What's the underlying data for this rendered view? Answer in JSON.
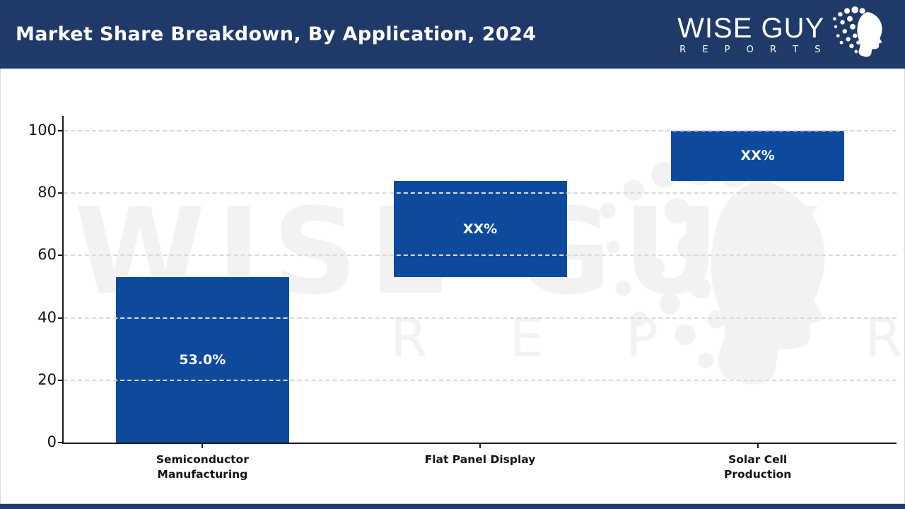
{
  "header": {
    "title": "Market Share Breakdown, By Application, 2024",
    "logo": {
      "line1": "WISE GUY",
      "line2": "R E P O R T S"
    }
  },
  "watermark": {
    "line1": "WISE GUY",
    "line2": "R E P O R T S"
  },
  "colors": {
    "header_bg": "#1f3a68",
    "bar_blue": "#0d4a9e",
    "gridline": "#d9d9d9",
    "watermark_gray": "#f2f2f2"
  },
  "chart_data": {
    "type": "bar",
    "subtype": "waterfall",
    "title": "Market Share Breakdown, By Application, 2024",
    "categories": [
      "Semiconductor\nManufacturing",
      "Flat Panel Display",
      "Solar Cell\nProduction"
    ],
    "bars": [
      {
        "category": "Semiconductor Manufacturing",
        "start": 0,
        "end": 53,
        "label": "53.0%"
      },
      {
        "category": "Flat Panel Display",
        "start": 53,
        "end": 84,
        "label": "XX%"
      },
      {
        "category": "Solar Cell Production",
        "start": 84,
        "end": 100,
        "label": "XX%"
      }
    ],
    "xlabel": "",
    "ylabel": "",
    "yticks": [
      0,
      20,
      40,
      60,
      80,
      100
    ],
    "ylim": [
      0,
      100
    ],
    "grid": "horizontal-dashed",
    "legend": "none"
  }
}
